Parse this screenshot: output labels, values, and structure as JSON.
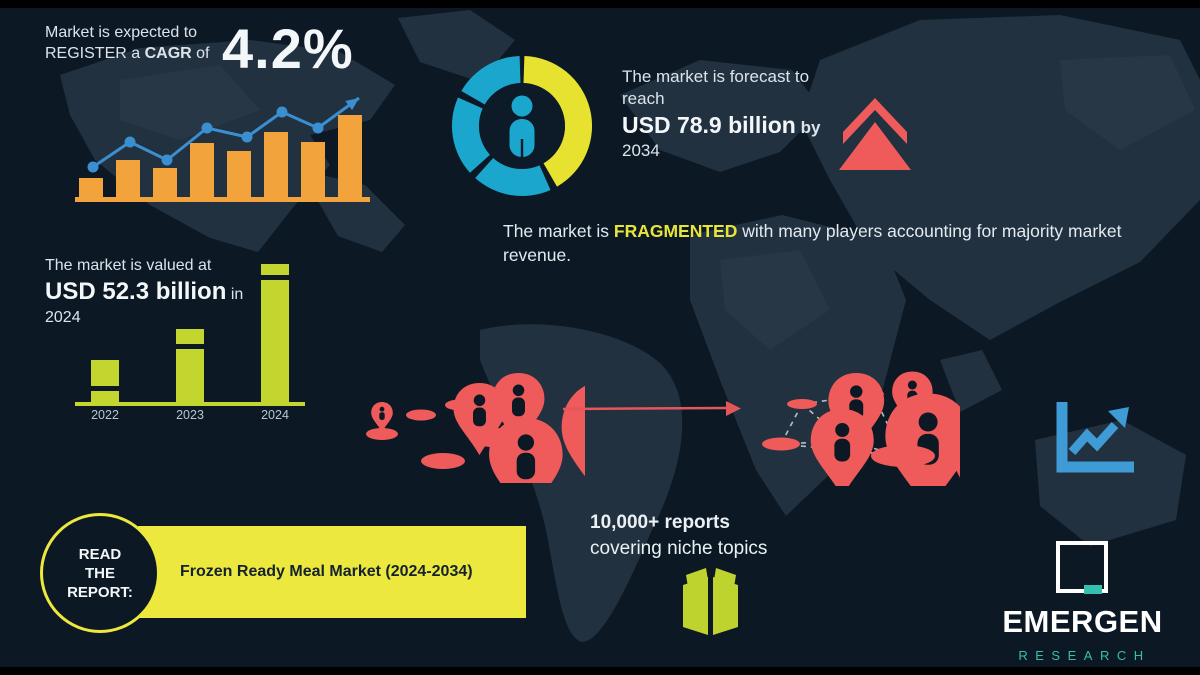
{
  "colors": {
    "background": "#0C1925",
    "map": "#22313F",
    "orange": "#F2A33C",
    "line_blue": "#3A8FD0",
    "donut_cyan": "#1BA7CD",
    "donut_yellow": "#E6E22F",
    "red": "#EF5A5A",
    "green": "#C3D62F",
    "banner_yellow": "#EDE83E",
    "teal": "#35BFAE",
    "text": "#E8EEF3"
  },
  "cagr": {
    "line1": "Market is expected to",
    "line2_pre": "REGISTER a ",
    "line2_bold": "CAGR",
    "line2_post": " of",
    "value": "4.2%"
  },
  "forecast": {
    "line1": "The market is forecast to",
    "line2": "reach",
    "value": "USD 78.9 billion",
    "suffix": "by",
    "year": "2034"
  },
  "fragmented": {
    "pre": "The market is ",
    "highlight": "FRAGMENTED",
    "post": " with many players accounting for majority market revenue."
  },
  "valuation": {
    "line1": "The market is valued at",
    "value": "USD 52.3 billion",
    "suffix": "in",
    "year": "2024"
  },
  "reports": {
    "line1": "10,000+ reports",
    "line2": "covering niche topics"
  },
  "read_report": {
    "circle": [
      "READ",
      "THE",
      "REPORT:"
    ],
    "banner": "Frozen Ready Meal Market (2024-2034)"
  },
  "logo": {
    "brand": "EMERGEN",
    "sub": "RESEARCH"
  },
  "chart_data": [
    {
      "type": "bar",
      "name": "cagr-trend-chart",
      "title": "Market growth trend with CAGR 4.2% (decorative bar+line chart)",
      "bar_values_relative": [
        23,
        45,
        35,
        66,
        56,
        79,
        67,
        100
      ],
      "line_points": [
        [
          18,
          77
        ],
        [
          55,
          52
        ],
        [
          92,
          70
        ],
        [
          132,
          38
        ],
        [
          172,
          47
        ],
        [
          207,
          22
        ],
        [
          243,
          38
        ]
      ],
      "arrow_end": [
        284,
        8
      ],
      "bar_color": "#F2A33C",
      "line_color": "#3A8FD0"
    },
    {
      "type": "bar",
      "name": "valuation-chart",
      "title": "Market valuation, USD billion",
      "categories": [
        "2022",
        "2023",
        "2024"
      ],
      "values": [
        16,
        27.5,
        52.3
      ],
      "max": 52.3,
      "stripe_offsets": [
        26,
        15,
        11
      ],
      "bar_color": "#C3D62F",
      "labeled_point": "2024 = USD 52.3 billion"
    },
    {
      "type": "pie",
      "name": "market-share-donut",
      "title": "Donut chart with person icon (decorative market composition)",
      "segments": [
        {
          "color": "#E6E22F",
          "percent": 41
        },
        {
          "color": "#1BA7CD",
          "percent": 18
        },
        {
          "color": "#1BA7CD",
          "percent": 18
        },
        {
          "color": "#1BA7CD",
          "percent": 16
        }
      ],
      "gap_percent": 7
    }
  ]
}
